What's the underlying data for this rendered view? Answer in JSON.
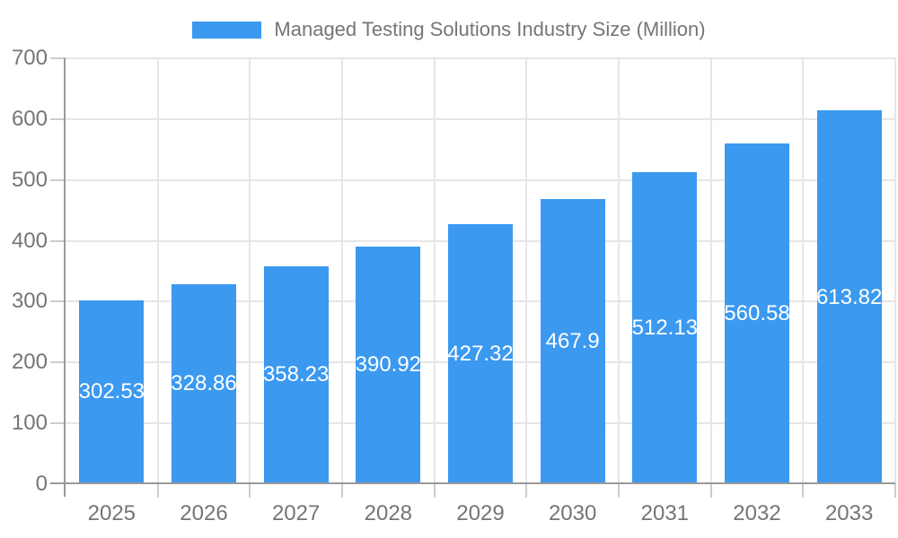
{
  "legend": {
    "position": "top",
    "swatch_color": "#3B99F0"
  },
  "chart_data": {
    "type": "bar",
    "title": "Managed Testing Solutions Industry Size (Million)",
    "categories": [
      "2025",
      "2026",
      "2027",
      "2028",
      "2029",
      "2030",
      "2031",
      "2032",
      "2033"
    ],
    "values": [
      302.53,
      328.86,
      358.23,
      390.92,
      427.32,
      467.9,
      512.13,
      560.58,
      613.82
    ],
    "bar_labels": [
      "302.53",
      "328.86",
      "358.23",
      "390.92",
      "427.32",
      "467.9",
      "512.13",
      "560.58",
      "613.82"
    ],
    "xlabel": "",
    "ylabel": "",
    "ylim": [
      0,
      700
    ],
    "y_ticks": [
      0,
      100,
      200,
      300,
      400,
      500,
      600,
      700
    ],
    "grid": true,
    "legend_position": "top",
    "colors": {
      "bar": "#3B99F0",
      "bar_label": "#FFFFFF",
      "text": "#757575",
      "grid": "#E6E6E6",
      "tick": "#CCCCCC",
      "axis": "#999999"
    }
  }
}
